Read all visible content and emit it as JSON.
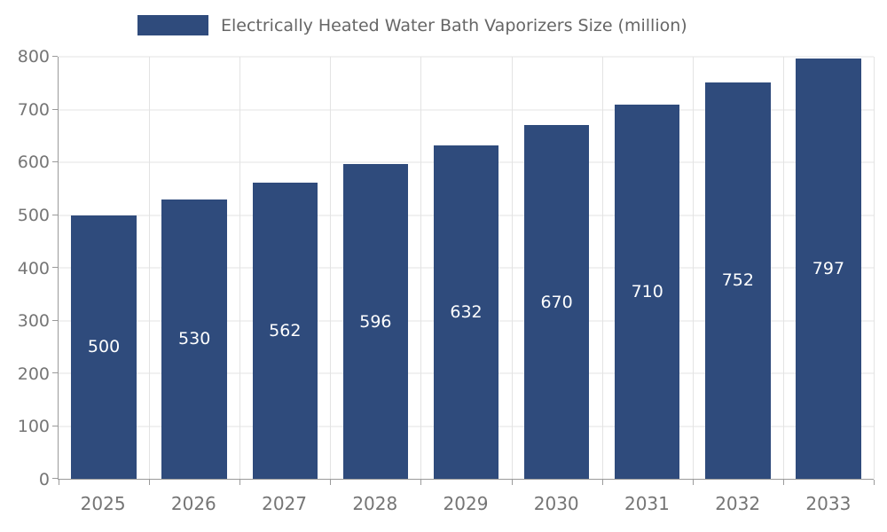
{
  "legend": {
    "label": "Electrically Heated Water Bath Vaporizers Size (million)"
  },
  "chart_data": {
    "type": "bar",
    "title": "Electrically Heated Water Bath Vaporizers Size (million)",
    "categories": [
      "2025",
      "2026",
      "2027",
      "2028",
      "2029",
      "2030",
      "2031",
      "2032",
      "2033"
    ],
    "values": [
      500,
      530,
      562,
      596,
      632,
      670,
      710,
      752,
      797
    ],
    "xlabel": "",
    "ylabel": "",
    "ylim": [
      0,
      800
    ],
    "yticks": [
      0,
      100,
      200,
      300,
      400,
      500,
      600,
      700,
      800
    ],
    "grid": true,
    "legend_position": "top",
    "bar_color": "#2F4B7C",
    "value_label_color": "#FFFFFF",
    "axis_label_color": "#757575",
    "gridline_color": "#E3E3E3",
    "axis_line_color": "#9A9A9A"
  }
}
